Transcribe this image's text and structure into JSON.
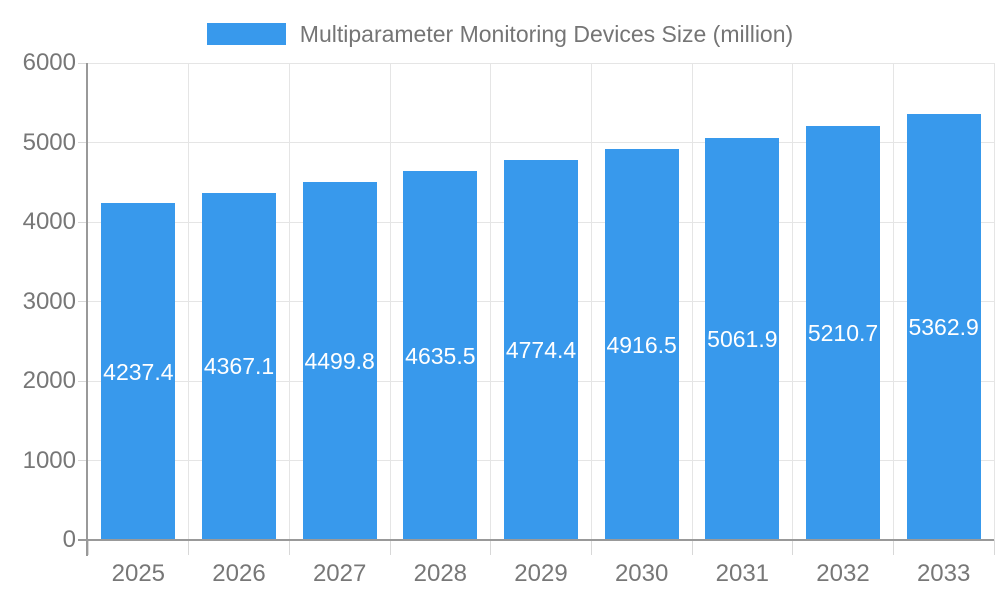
{
  "chart_data": {
    "type": "bar",
    "title": "Multiparameter Monitoring Devices Size (million)",
    "series_name": "Multiparameter Monitoring Devices Size (million)",
    "categories": [
      "2025",
      "2026",
      "2027",
      "2028",
      "2029",
      "2030",
      "2031",
      "2032",
      "2033"
    ],
    "values": [
      4237.4,
      4367.1,
      4499.8,
      4635.5,
      4774.4,
      4916.5,
      5061.9,
      5210.7,
      5362.9
    ],
    "xlabel": "",
    "ylabel": "",
    "ylim": [
      0,
      6000
    ],
    "yticks": [
      0,
      1000,
      2000,
      3000,
      4000,
      5000,
      6000
    ],
    "grid": true,
    "legend_position": "top",
    "value_labels_inside_bars": true,
    "colors": {
      "bar": "#3899ec",
      "value_label": "#ffffff",
      "axis_text": "#777777",
      "legend_text": "#757575",
      "gridline": "#e5e5e5",
      "tick_mark": "#d8d8d8",
      "axis_line": "#999999",
      "background": "#ffffff"
    }
  }
}
